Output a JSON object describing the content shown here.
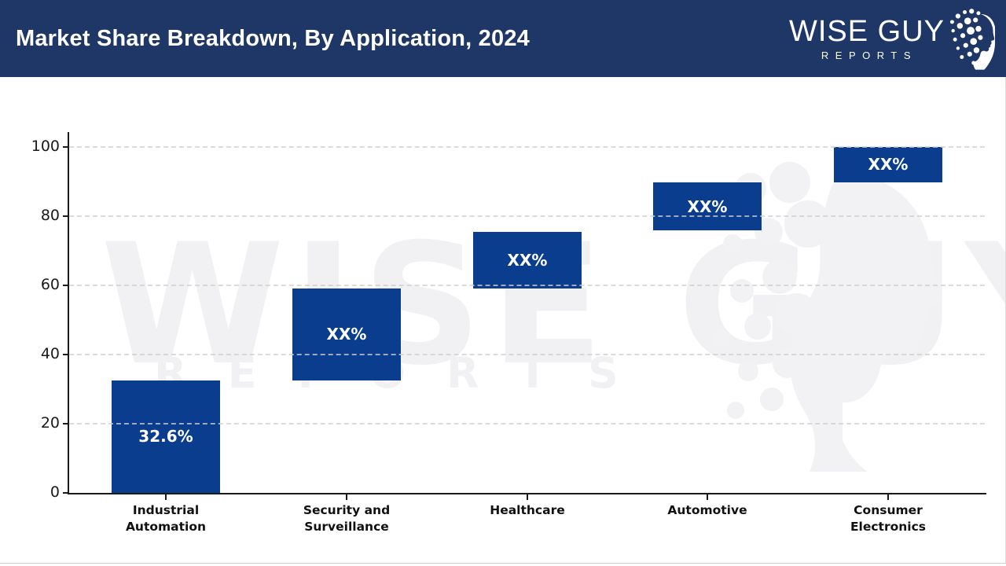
{
  "header": {
    "title": "Market Share Breakdown, By Application, 2024",
    "bg_color": "#1F3767",
    "logo": {
      "line1": "WISE GUY",
      "line2": "REPORTS"
    }
  },
  "watermark": {
    "line1": "WISE GUY",
    "line2": "REPORTS"
  },
  "chart_data": {
    "type": "bar",
    "subtype": "waterfall",
    "title": "Market Share Breakdown, By Application, 2024",
    "categories": [
      "Industrial Automation",
      "Security and Surveillance",
      "Healthcare",
      "Automotive",
      "Consumer Electronics"
    ],
    "segments": [
      {
        "category": "Industrial Automation",
        "start": 0,
        "end": 32.6,
        "label": "32.6%"
      },
      {
        "category": "Security and Surveillance",
        "start": 32.6,
        "end": 59.2,
        "label": "XX%"
      },
      {
        "category": "Healthcare",
        "start": 59.2,
        "end": 75.5,
        "label": "XX%"
      },
      {
        "category": "Automotive",
        "start": 75.8,
        "end": 89.8,
        "label": "XX%"
      },
      {
        "category": "Consumer Electronics",
        "start": 89.8,
        "end": 100,
        "label": "XX%"
      }
    ],
    "yticks": [
      0,
      20,
      40,
      60,
      80,
      100
    ],
    "ylim": [
      0,
      100
    ],
    "xlabel": "",
    "ylabel": "",
    "grid": "dashed-horizontal",
    "legend": "none",
    "bar_color": "#0B3D8F",
    "bar_label_color": "#FFFFFF",
    "axis_color": "#1a1a1a"
  }
}
